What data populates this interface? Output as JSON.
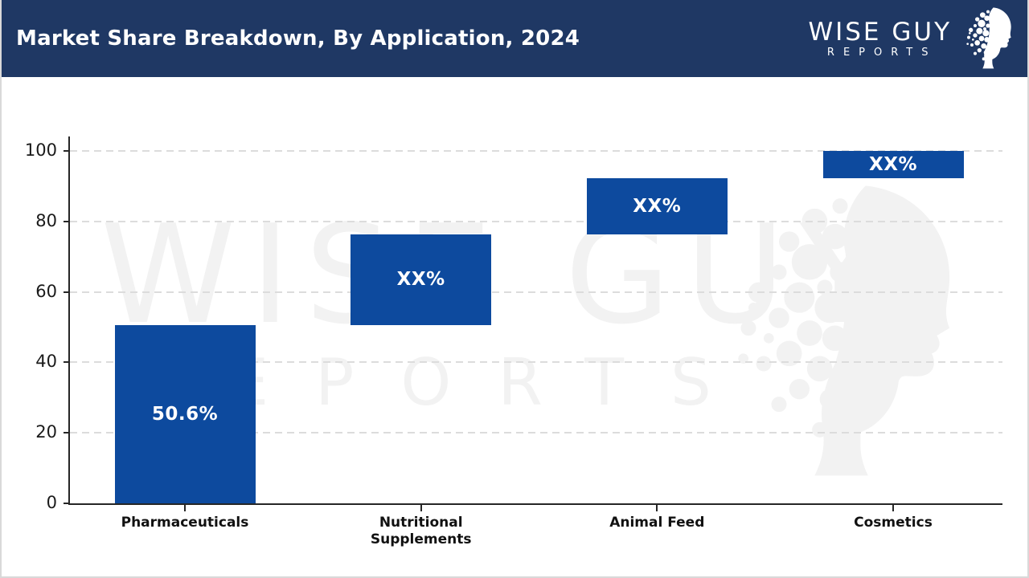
{
  "header": {
    "title": "Market Share Breakdown, By Application, 2024",
    "logo": {
      "line1": "WISE GUY",
      "line2": "REPORTS"
    }
  },
  "watermark": {
    "line1": "WISE GUY",
    "line2": "REPORTS"
  },
  "chart_data": {
    "type": "bar",
    "subtype": "waterfall",
    "title": "Market Share Breakdown, By Application, 2024",
    "categories": [
      "Pharmaceuticals",
      "Nutritional\nSupplements",
      "Animal Feed",
      "Cosmetics"
    ],
    "segments": [
      {
        "category": "Pharmaceuticals",
        "start": 0,
        "end": 50.6,
        "label": "50.6%"
      },
      {
        "category": "Nutritional Supplements",
        "start": 50.6,
        "end": 76.4,
        "label": "XX%"
      },
      {
        "category": "Animal Feed",
        "start": 76.4,
        "end": 92.2,
        "label": "XX%"
      },
      {
        "category": "Cosmetics",
        "start": 92.2,
        "end": 100,
        "label": "XX%"
      }
    ],
    "ylim": [
      0,
      100
    ],
    "yticks": [
      0,
      20,
      40,
      60,
      80,
      100
    ],
    "xlabel": "",
    "ylabel": "",
    "legend": "none",
    "grid": "horizontal-dashed",
    "bar_color": "#0d4a9e",
    "header_color": "#1f3864"
  }
}
